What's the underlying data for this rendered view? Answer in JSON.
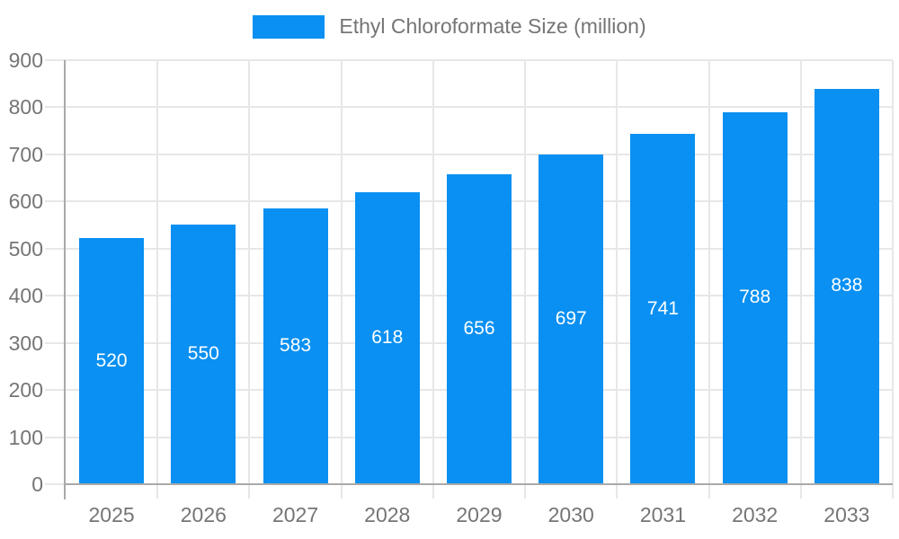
{
  "legend": {
    "label": "Ethyl Chloroformate Size (million)"
  },
  "chart_data": {
    "type": "bar",
    "title": "",
    "series_name": "Ethyl Chloroformate Size (million)",
    "categories": [
      "2025",
      "2026",
      "2027",
      "2028",
      "2029",
      "2030",
      "2031",
      "2032",
      "2033"
    ],
    "values": [
      520,
      550,
      583,
      618,
      656,
      697,
      741,
      788,
      838
    ],
    "xlabel": "",
    "ylabel": "",
    "ylim": [
      0,
      900
    ],
    "yticks": [
      0,
      100,
      200,
      300,
      400,
      500,
      600,
      700,
      800,
      900
    ],
    "grid": true,
    "legend_position": "top-center",
    "value_labels_shown": true,
    "value_label_position": "middle-of-bar",
    "colors": {
      "bar": "#0990f2",
      "value_label": "#ffffff",
      "axis_text": "#757575",
      "grid_line": "#e7e7e7",
      "axis_line": "#a9a9a9",
      "background": "#ffffff"
    }
  }
}
